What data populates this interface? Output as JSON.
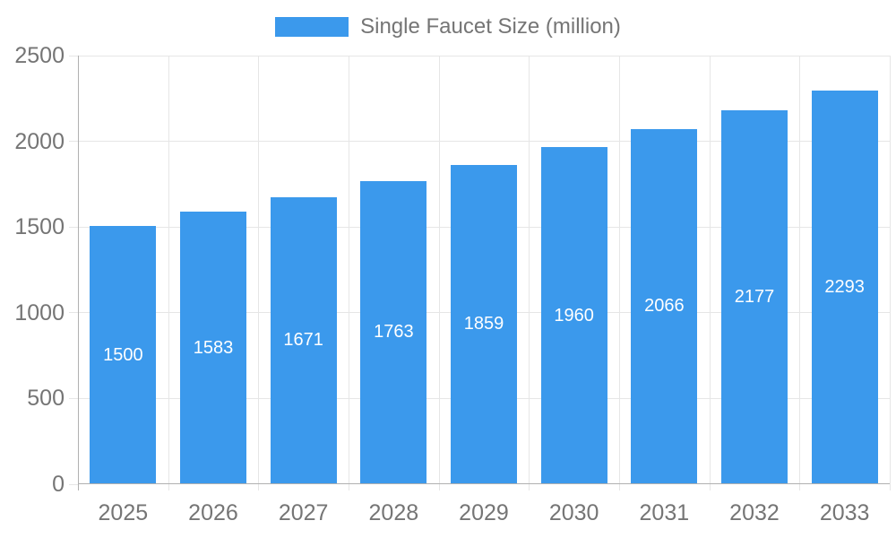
{
  "legend": {
    "label": "Single Faucet Size (million)"
  },
  "chart_data": {
    "type": "bar",
    "title": "",
    "series_name": "Single Faucet Size (million)",
    "categories": [
      "2025",
      "2026",
      "2027",
      "2028",
      "2029",
      "2030",
      "2031",
      "2032",
      "2033"
    ],
    "values": [
      1500,
      1583,
      1671,
      1763,
      1859,
      1960,
      2066,
      2177,
      2293
    ],
    "bar_labels": [
      "1500",
      "1583",
      "1671",
      "1763",
      "1859",
      "1960",
      "2066",
      "2177",
      "2293"
    ],
    "xlabel": "",
    "ylabel": "",
    "ylim": [
      0,
      2500
    ],
    "yticks": [
      0,
      500,
      1000,
      1500,
      2000,
      2500
    ],
    "grid": true,
    "legend_position": "top",
    "bar_label_position": "center-inside",
    "colors": {
      "bar": "#3B99EC",
      "bar_label_text": "#FFFFFF",
      "axis_text": "#757575",
      "grid_line": "#E6E6E6",
      "axis_line": "#B0B0B0",
      "background": "#FFFFFF"
    }
  }
}
